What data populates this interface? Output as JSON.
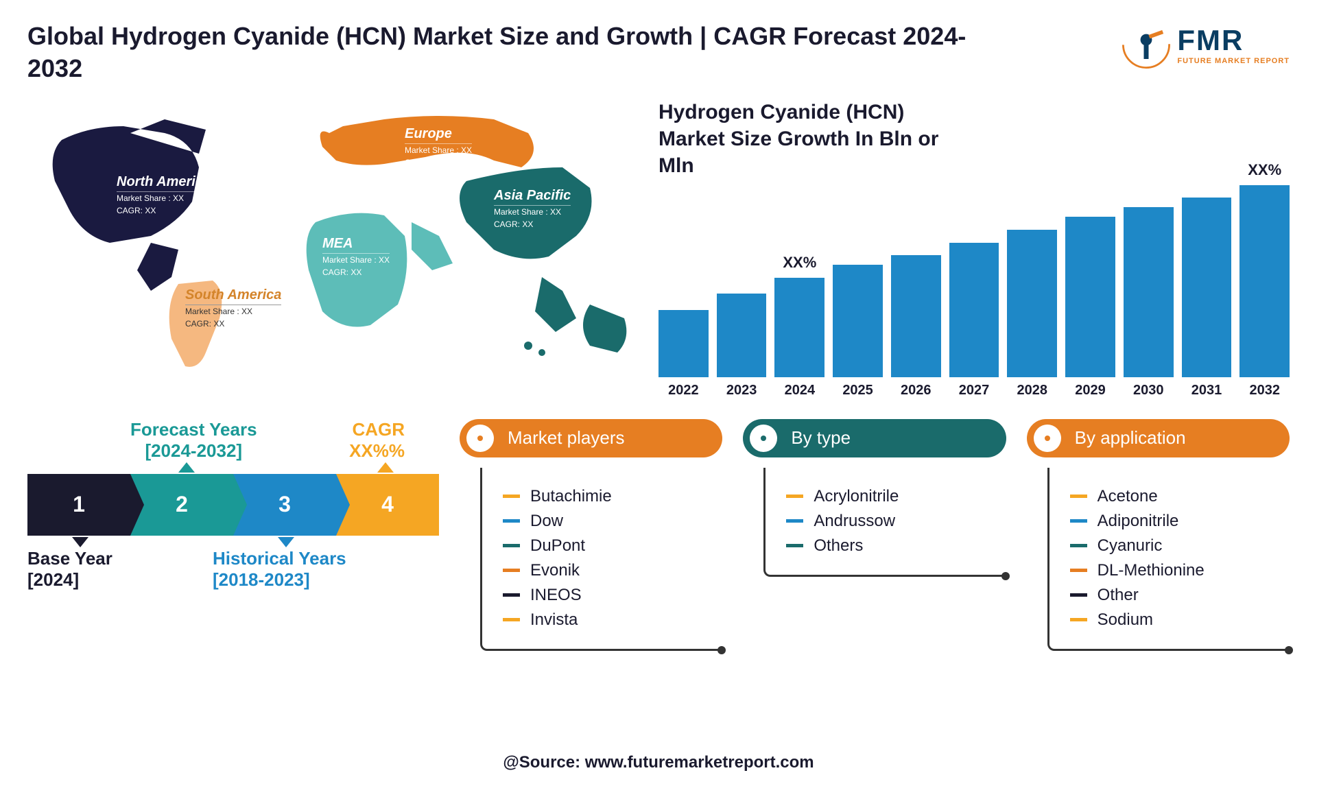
{
  "title": "Global Hydrogen Cyanide (HCN)  Market Size and Growth | CAGR Forecast 2024-2032",
  "logo": {
    "fmr": "FMR",
    "sub": "FUTURE MARKET REPORT"
  },
  "map": {
    "regions": [
      {
        "name": "North America",
        "share": "Market Share : XX",
        "cagr": "CAGR: XX",
        "color": "#1a1a40"
      },
      {
        "name": "South America",
        "share": "Market Share : XX",
        "cagr": "CAGR: XX",
        "color": "#f5b880"
      },
      {
        "name": "Europe",
        "share": "Market Share : XX",
        "cagr": "CAGR: XX",
        "color": "#e67e22"
      },
      {
        "name": "MEA",
        "share": "Market Share : XX",
        "cagr": "CAGR: XX",
        "color": "#5dbdb8"
      },
      {
        "name": "Asia Pacific",
        "share": "Market Share : XX",
        "cagr": "CAGR: XX",
        "color": "#1a6b6b"
      }
    ]
  },
  "bar_chart": {
    "title": "Hydrogen Cyanide (HCN)  Market Size Growth In Bln or Mln",
    "type": "bar",
    "categories": [
      "2022",
      "2023",
      "2024",
      "2025",
      "2026",
      "2027",
      "2028",
      "2029",
      "2030",
      "2031",
      "2032"
    ],
    "values": [
      105,
      130,
      155,
      175,
      190,
      210,
      230,
      250,
      265,
      280,
      300
    ],
    "bar_color": "#1e88c7",
    "annotations": [
      {
        "index": 2,
        "text": "XX%"
      },
      {
        "index": 10,
        "text": "XX%"
      }
    ],
    "label_fontsize": 20,
    "title_fontsize": 30
  },
  "timeline": {
    "steps": [
      "1",
      "2",
      "3",
      "4"
    ],
    "step_colors": [
      "#1a1a2e",
      "#1a9996",
      "#1e88c7",
      "#f5a623"
    ],
    "labels": {
      "base": {
        "title": "Base Year",
        "value": "[2024]",
        "color": "#1a1a2e"
      },
      "forecast": {
        "title": "Forecast Years",
        "value": "[2024-2032]",
        "color": "#1a9996"
      },
      "hist": {
        "title": "Historical Years",
        "value": "[2018-2023]",
        "color": "#1e88c7"
      },
      "cagr": {
        "title": "CAGR",
        "value": "XX%%",
        "color": "#f5a623"
      }
    }
  },
  "categories": [
    {
      "title": "Market players",
      "header_color": "#e67e22",
      "items": [
        "Butachimie",
        "Dow",
        "DuPont",
        "Evonik",
        "INEOS",
        "Invista"
      ],
      "item_colors": [
        "#f5a623",
        "#1e88c7",
        "#1a6b6b",
        "#e67e22",
        "#1a1a2e",
        "#f5a623"
      ]
    },
    {
      "title": "By type",
      "header_color": "#1a6b6b",
      "items": [
        "Acrylonitrile",
        "Andrussow",
        "Others"
      ],
      "item_colors": [
        "#f5a623",
        "#1e88c7",
        "#1a6b6b"
      ]
    },
    {
      "title": "By application",
      "header_color": "#e67e22",
      "items": [
        "Acetone",
        "Adiponitrile",
        "Cyanuric",
        "DL-Methionine",
        "Other",
        "Sodium"
      ],
      "item_colors": [
        "#f5a623",
        "#1e88c7",
        "#1a6b6b",
        "#e67e22",
        "#1a1a2e",
        "#f5a623"
      ]
    }
  ],
  "source": "@Source: www.futuremarketreport.com"
}
